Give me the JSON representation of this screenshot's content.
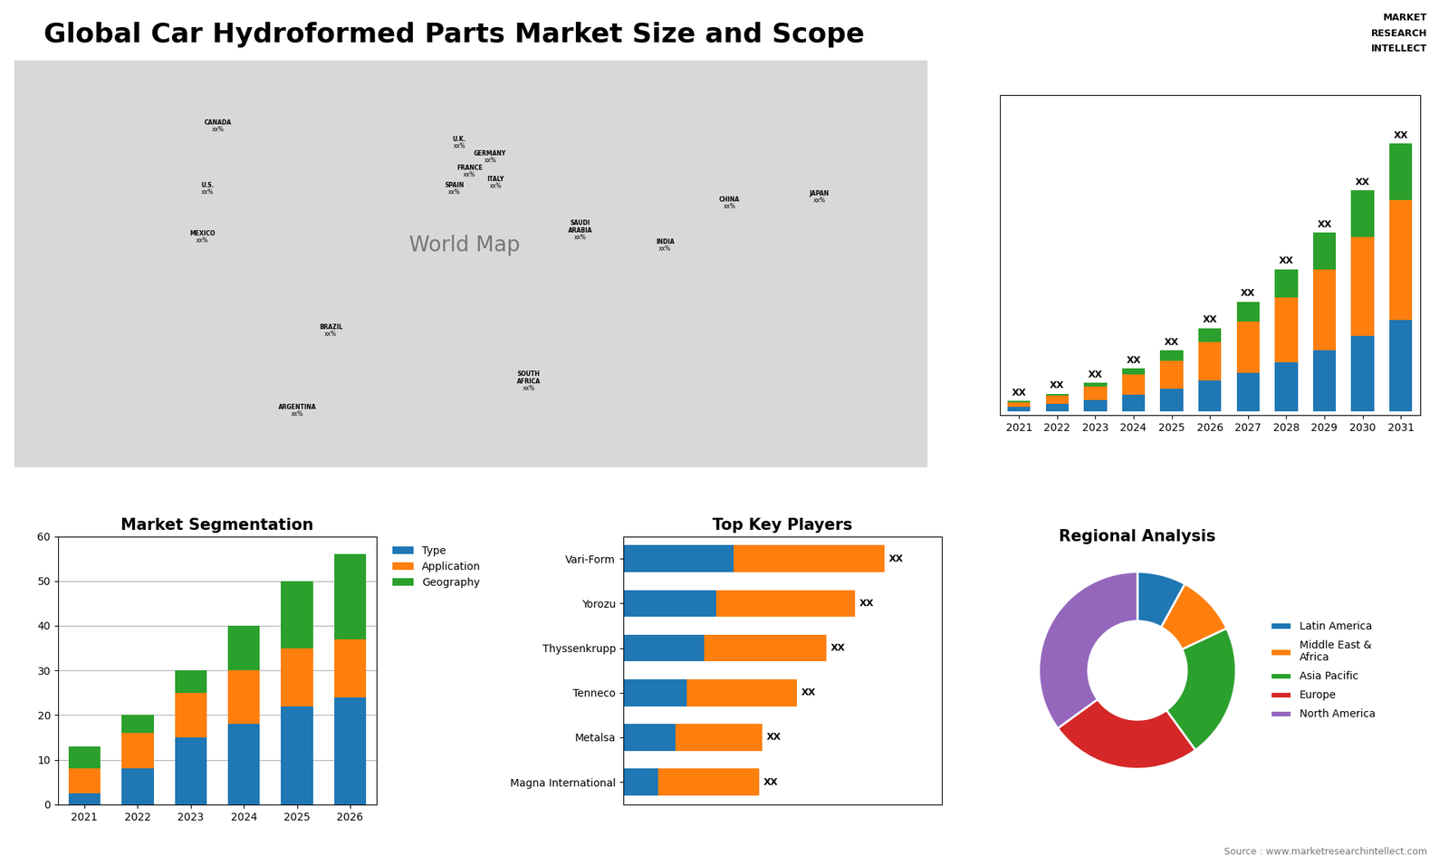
{
  "title": "Global Car Hydroformed Parts Market Size and Scope",
  "annotations": [
    "Source : www.marketresearchintellect.com",
    "MARKET",
    "RESEARCH",
    "INTELLECT"
  ],
  "chart_data": [
    {
      "type": "map",
      "xlim": [
        -175,
        180
      ],
      "ylim": [
        -58,
        85
      ],
      "tick_labels": false,
      "annotations": [
        {
          "text": "World Map",
          "x": 0,
          "y": 20
        }
      ],
      "labels": [
        {
          "name": "CANADA",
          "x": -96,
          "y": 62,
          "value_label": "xx%"
        },
        {
          "name": "U.S.",
          "x": -100,
          "y": 40,
          "value_label": "xx%"
        },
        {
          "name": "MEXICO",
          "x": -102,
          "y": 23,
          "value_label": "xx%"
        },
        {
          "name": "BRAZIL",
          "x": -52,
          "y": -10,
          "value_label": "xx%"
        },
        {
          "name": "ARGENTINA",
          "x": -65,
          "y": -38,
          "value_label": "xx%"
        },
        {
          "name": "U.K.",
          "x": -2,
          "y": 56,
          "value_label": "xx%"
        },
        {
          "name": "FRANCE",
          "x": 2,
          "y": 46,
          "value_label": "xx%"
        },
        {
          "name": "SPAIN",
          "x": -4,
          "y": 40,
          "value_label": "xx%"
        },
        {
          "name": "GERMANY",
          "x": 10,
          "y": 51,
          "value_label": "xx%"
        },
        {
          "name": "ITALY",
          "x": 12,
          "y": 42,
          "value_label": "xx%"
        },
        {
          "name": "SAUDI\nARABIA",
          "x": 45,
          "y": 24,
          "value_label": "xx%"
        },
        {
          "name": "SOUTH\nAFRICA",
          "x": 25,
          "y": -29,
          "value_label": "xx%"
        },
        {
          "name": "CHINA",
          "x": 103,
          "y": 35,
          "value_label": "xx%"
        },
        {
          "name": "INDIA",
          "x": 78,
          "y": 20,
          "value_label": "xx%"
        },
        {
          "name": "JAPAN",
          "x": 138,
          "y": 37,
          "value_label": "xx%"
        }
      ]
    },
    {
      "type": "bar",
      "stacked": true,
      "categories": [
        "2021",
        "2022",
        "2023",
        "2024",
        "2025",
        "2026",
        "2027",
        "2028",
        "2029",
        "2030",
        "2031"
      ],
      "series": [
        {
          "values": [
            1.0,
            1.8,
            2.8,
            4.0,
            5.5,
            7.5,
            9.5,
            12.0,
            15.0,
            18.5,
            22.5
          ]
        },
        {
          "values": [
            1.2,
            2.0,
            3.2,
            5.0,
            7.0,
            9.5,
            12.5,
            16.0,
            20.0,
            24.5,
            29.5
          ]
        },
        {
          "values": [
            0.3,
            0.5,
            1.0,
            1.5,
            2.5,
            3.5,
            5.0,
            7.0,
            9.0,
            11.5,
            14.0
          ]
        }
      ],
      "value_labels": [
        "XX",
        "XX",
        "XX",
        "XX",
        "XX",
        "XX",
        "XX",
        "XX",
        "XX",
        "XX",
        "XX"
      ],
      "ylim": [
        -1,
        77.88
      ],
      "yticks": [],
      "tick_labels": "x"
    },
    {
      "type": "bar",
      "stacked": true,
      "title": "Market Segmentation",
      "categories": [
        "2021",
        "2022",
        "2023",
        "2024",
        "2025",
        "2026"
      ],
      "series": [
        {
          "name": "Type",
          "values": [
            2.5,
            8.0,
            15.0,
            18.0,
            22.0,
            24.0
          ]
        },
        {
          "name": "Application",
          "values": [
            5.5,
            8.0,
            10.0,
            12.0,
            13.0,
            13.0
          ]
        },
        {
          "name": "Geography",
          "values": [
            5.0,
            4.0,
            5.0,
            10.0,
            15.0,
            19.0
          ]
        }
      ],
      "ylim": [
        0,
        60
      ],
      "yticks": [
        0,
        10,
        20,
        30,
        40,
        50,
        60
      ],
      "grid": true,
      "legend": "upper left"
    },
    {
      "type": "bar",
      "stacked": true,
      "orientation": "horizontal",
      "title": "Top Key Players",
      "categories": [
        "Magna International",
        "Metalsa",
        "Tenneco",
        "Thyssenkrupp",
        "Yorozu",
        "Vari-Form"
      ],
      "series": [
        {
          "values": [
            1.2,
            1.8,
            2.2,
            2.8,
            3.2,
            3.8
          ]
        },
        {
          "values": [
            3.5,
            3.0,
            3.8,
            4.2,
            4.8,
            5.2
          ]
        }
      ],
      "value_labels": [
        "XX",
        "XX",
        "XX",
        "XX",
        "XX",
        "XX"
      ],
      "xlim": [
        0,
        10.98
      ],
      "xticks": [],
      "tick_labels": "y"
    },
    {
      "type": "pie",
      "title": "Regional Analysis",
      "categories": [
        "Latin America",
        "Middle East &\nAfrica",
        "Asia Pacific",
        "Europe",
        "North America"
      ],
      "values": [
        8,
        10,
        22,
        25,
        35
      ],
      "legend": "center left"
    }
  ]
}
